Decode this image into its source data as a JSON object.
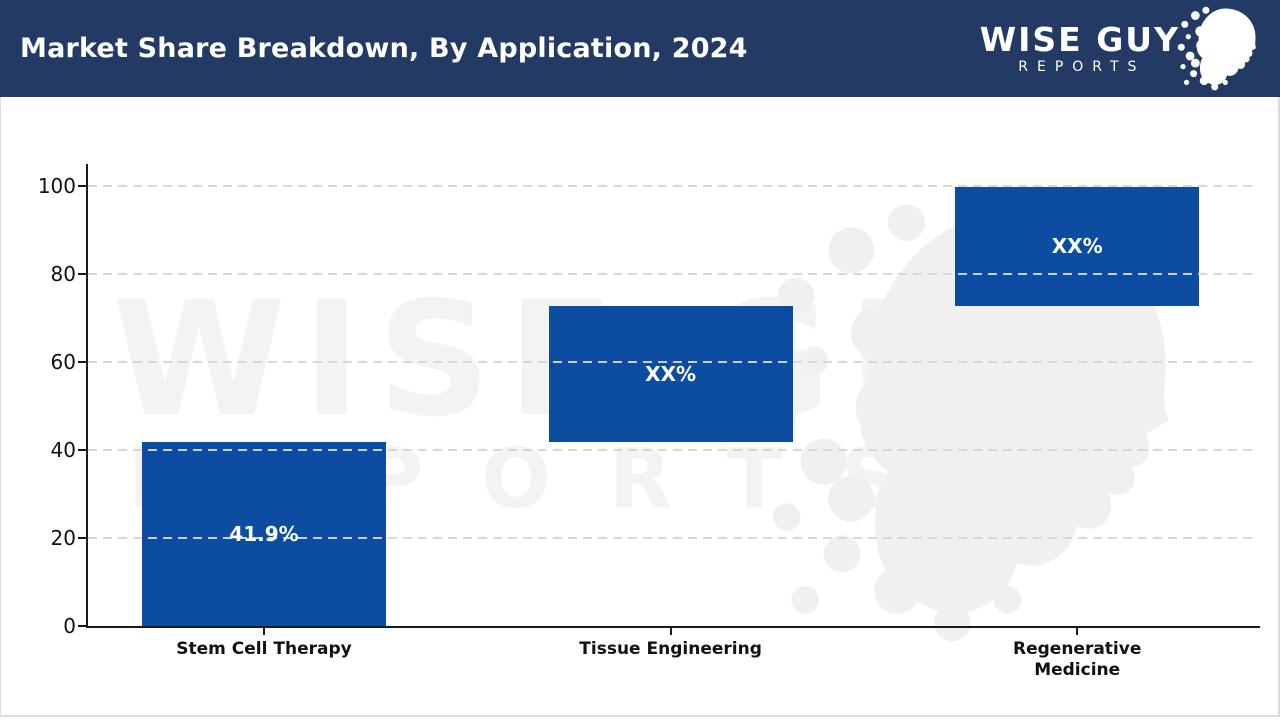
{
  "header": {
    "title": "Market Share Breakdown, By Application, 2024",
    "logo": {
      "line1": "WISE GUY",
      "line2": "REPORTS"
    }
  },
  "watermark": {
    "line1": "WISE GUY",
    "line2": "REPORTS"
  },
  "colors": {
    "header_bg": "#233a64",
    "bar": "#0c4da1",
    "gridline": "#d6d6d6",
    "axis": "#1a1a1a",
    "watermark": "#f3f3f3"
  },
  "chart_data": {
    "type": "bar",
    "subtype": "floating-waterfall",
    "title": "Market Share Breakdown, By Application, 2024",
    "categories": [
      "Stem Cell Therapy",
      "Tissue Engineering",
      "Regenerative\nMedicine"
    ],
    "segments": [
      {
        "category": "Stem Cell Therapy",
        "start": 0,
        "end": 41.9,
        "label": "41.9%"
      },
      {
        "category": "Tissue Engineering",
        "start": 41.9,
        "end": 72.8,
        "label": "XX%"
      },
      {
        "category": "Regenerative Medicine",
        "start": 72.8,
        "end": 99.8,
        "label": "XX%"
      }
    ],
    "xlabel": "",
    "ylabel": "",
    "ylim": [
      0,
      100
    ],
    "yticks": [
      0,
      20,
      40,
      60,
      80,
      100
    ],
    "grid": "horizontal dashed, drawn over bars",
    "legend": "none",
    "bar_color": "#0c4da1",
    "bar_label_color": "#ffffff"
  }
}
